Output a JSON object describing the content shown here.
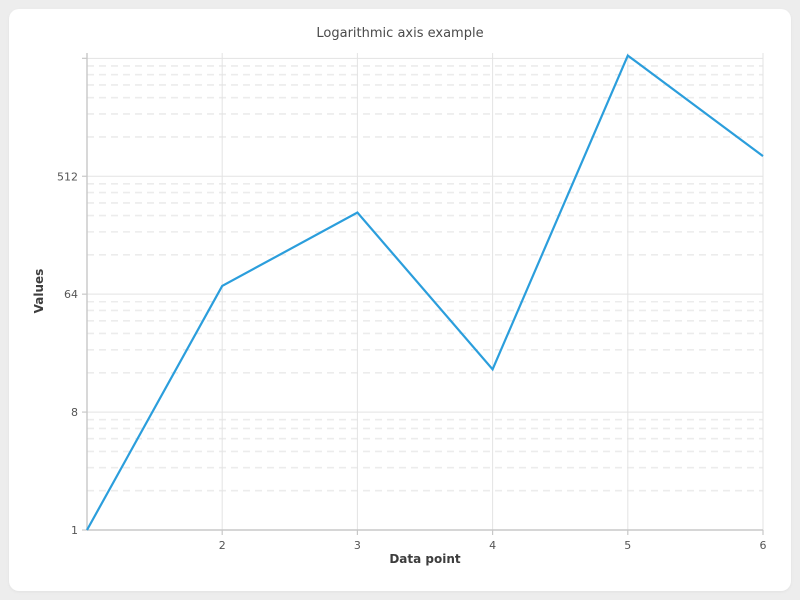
{
  "page": {
    "background_color": "#ededed",
    "card_color": "#ffffff"
  },
  "chart_data": {
    "type": "line",
    "title": "Logarithmic axis example",
    "xlabel": "Data point",
    "ylabel": "Values",
    "x": [
      1,
      2,
      3,
      4,
      5,
      6
    ],
    "values": [
      1,
      74,
      270,
      17,
      4300,
      730
    ],
    "series": [
      {
        "name": "Values",
        "values": [
          1,
          74,
          270,
          17,
          4300,
          730
        ]
      }
    ],
    "x_ticks": [
      2,
      3,
      4,
      5,
      6
    ],
    "y_ticks": [
      1,
      8,
      64,
      512
    ],
    "xlim": [
      1,
      6
    ],
    "ylim": [
      1,
      4500
    ],
    "y_scale": "log",
    "log_base": 8,
    "grid": {
      "major_solid": true,
      "minor_dashed_horizontal": true,
      "vertical_at_x_ticks": true
    },
    "legend_position": "none",
    "line_color": "#2b9edc",
    "major_grid_color": "#e3e3e3",
    "minor_grid_color": "#ececec",
    "spine_color": "#c8c8c8",
    "tick_label_color": "#555555",
    "title_color": "#4a4a4a"
  }
}
